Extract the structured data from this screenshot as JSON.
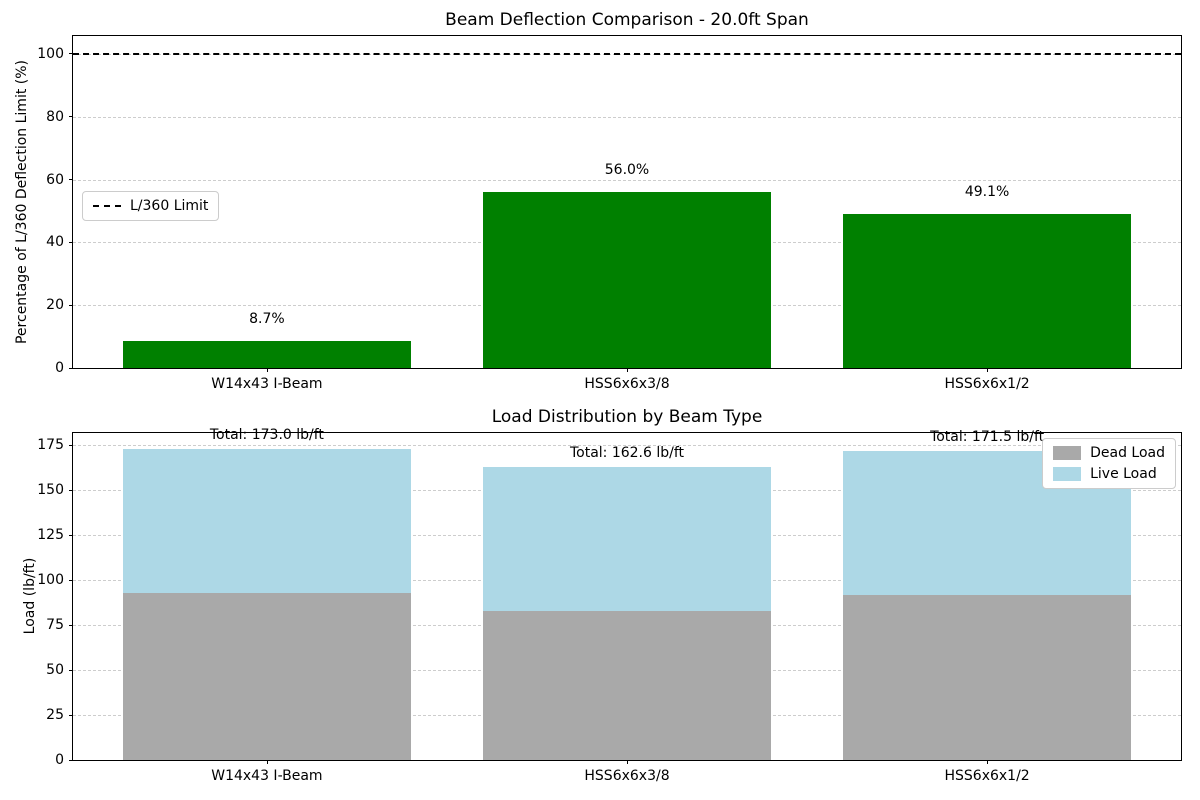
{
  "figure": {
    "background": "#ffffff"
  },
  "chart_data": [
    {
      "type": "bar",
      "title": "Beam Deflection Comparison - 20.0ft Span",
      "ylabel": "Percentage of L/360 Deflection Limit (%)",
      "xlabel": "",
      "categories": [
        "W14x43 I-Beam",
        "HSS6x6x3/8",
        "HSS6x6x1/2"
      ],
      "values": [
        8.7,
        56.0,
        49.1
      ],
      "bar_labels": [
        "8.7%",
        "56.0%",
        "49.1%"
      ],
      "bar_color": "#008000",
      "ylim": [
        0,
        105.7
      ],
      "yticks": [
        0,
        20,
        40,
        60,
        80,
        100
      ],
      "grid": true,
      "legend_position": "center-left",
      "reference_line": {
        "value": 100,
        "color": "#000000",
        "style": "dashed"
      },
      "legend": [
        {
          "label": "L/360 Limit",
          "marker": "dashed-line",
          "color": "#000000"
        }
      ]
    },
    {
      "type": "stacked_bar",
      "title": "Load Distribution by Beam Type",
      "ylabel": "Load (lb/ft)",
      "xlabel": "",
      "categories": [
        "W14x43 I-Beam",
        "HSS6x6x3/8",
        "HSS6x6x1/2"
      ],
      "series": [
        {
          "name": "Dead Load",
          "color": "#a9a9a9",
          "values": [
            93.0,
            82.6,
            91.5
          ]
        },
        {
          "name": "Live Load",
          "color": "#add8e6",
          "values": [
            80.0,
            80.0,
            80.0
          ]
        }
      ],
      "totals": [
        173.0,
        162.6,
        171.5
      ],
      "total_labels": [
        "Total: 173.0 lb/ft",
        "Total: 162.6 lb/ft",
        "Total: 171.5 lb/ft"
      ],
      "ylim": [
        0,
        181.7
      ],
      "yticks": [
        0,
        25,
        50,
        75,
        100,
        125,
        150,
        175
      ],
      "grid": true,
      "legend_position": "top-right",
      "legend": [
        {
          "label": "Dead Load",
          "marker": "patch",
          "color": "#a9a9a9"
        },
        {
          "label": "Live Load",
          "marker": "patch",
          "color": "#add8e6"
        }
      ]
    }
  ]
}
